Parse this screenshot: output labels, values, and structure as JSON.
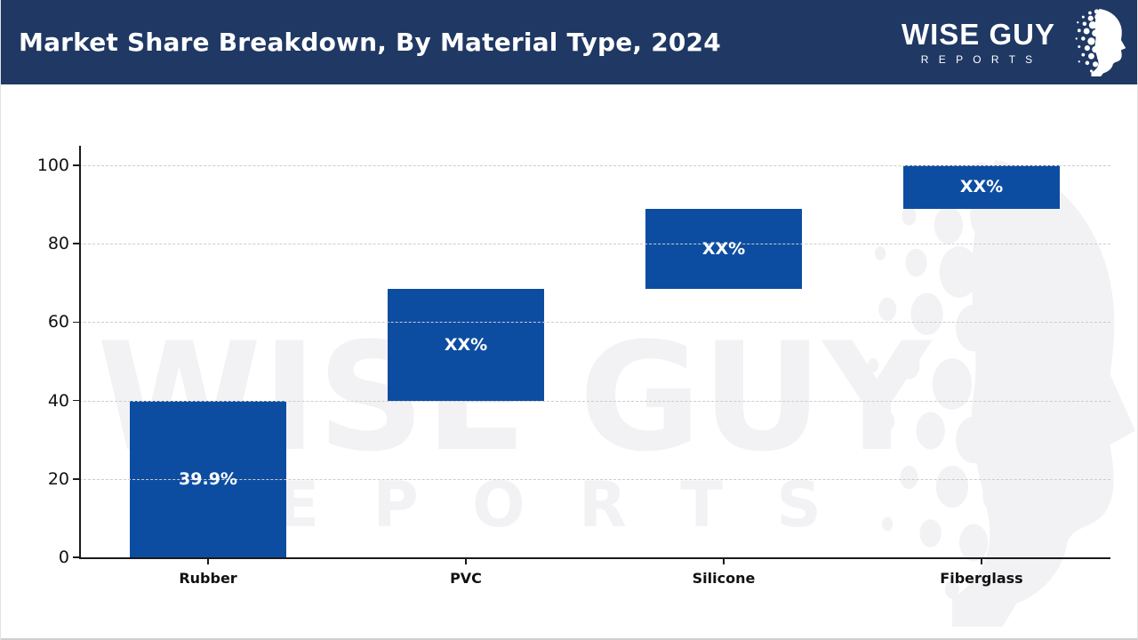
{
  "header": {
    "title": "Market Share Breakdown, By Material Type, 2024",
    "bg_color": "#1f3864",
    "logo": {
      "line1": "WISE GUY",
      "line2": "R E P O R T S"
    }
  },
  "watermark": {
    "line1": "WISE GUY",
    "line2": "R E P O R T S"
  },
  "chart_data": {
    "type": "bar",
    "subtype": "waterfall",
    "title": "Market Share Breakdown, By Material Type, 2024",
    "categories": [
      "Rubber",
      "PVC",
      "Silicone",
      "Fiberglass"
    ],
    "segments": [
      {
        "category": "Rubber",
        "start": 0,
        "end": 39.9,
        "label": "39.9%"
      },
      {
        "category": "PVC",
        "start": 39.9,
        "end": 68.4,
        "label": "XX%"
      },
      {
        "category": "Silicone",
        "start": 68.4,
        "end": 88.9,
        "label": "XX%"
      },
      {
        "category": "Fiberglass",
        "start": 88.9,
        "end": 100,
        "label": "XX%"
      }
    ],
    "xlabel": "",
    "ylabel": "",
    "ylim": [
      0,
      105
    ],
    "yticks": [
      0,
      20,
      40,
      60,
      80,
      100
    ],
    "grid": true,
    "grid_style": "dashed",
    "legend": false,
    "bar_color": "#0d4da1",
    "label_color": "#ffffff"
  }
}
